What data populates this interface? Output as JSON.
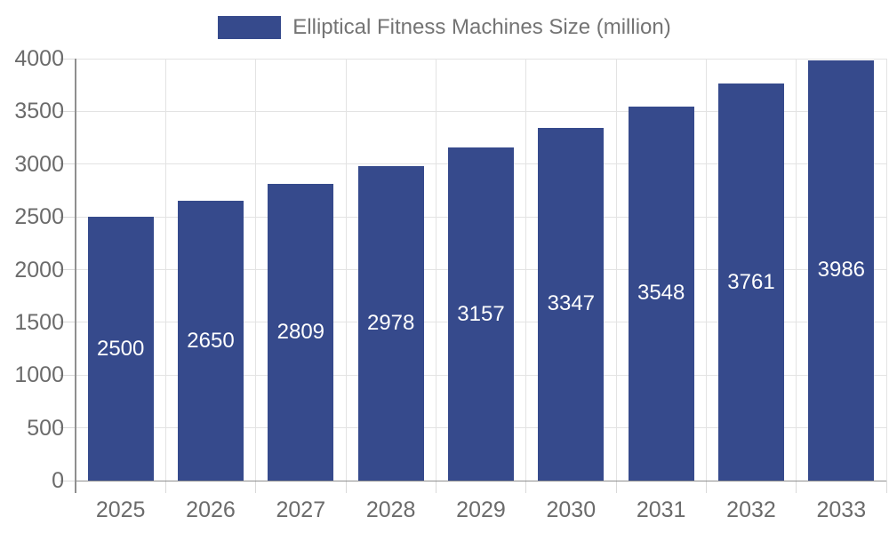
{
  "chart_data": {
    "type": "bar",
    "title": "Elliptical Fitness Machines Size (million)",
    "categories": [
      "2025",
      "2026",
      "2027",
      "2028",
      "2029",
      "2030",
      "2031",
      "2032",
      "2033"
    ],
    "series": [
      {
        "name": "Elliptical Fitness Machines Size (million)",
        "values": [
          2500,
          2650,
          2809,
          2978,
          3157,
          3347,
          3548,
          3761,
          3986
        ]
      }
    ],
    "xlabel": "",
    "ylabel": "",
    "ylim": [
      0,
      4000
    ],
    "yticks": [
      0,
      500,
      1000,
      1500,
      2000,
      2500,
      3000,
      3500,
      4000
    ],
    "grid": true,
    "legend_position": "top",
    "bar_value_labels": true
  },
  "colors": {
    "bar": "#364A8C",
    "grid": "#E3E3E3",
    "axis": "#8F8F8F",
    "tick": "#D9D9D9",
    "axis_text": "#6B6B6B",
    "legend_text": "#747474",
    "bar_label": "#FFFFFF",
    "background": "#FFFFFF"
  }
}
